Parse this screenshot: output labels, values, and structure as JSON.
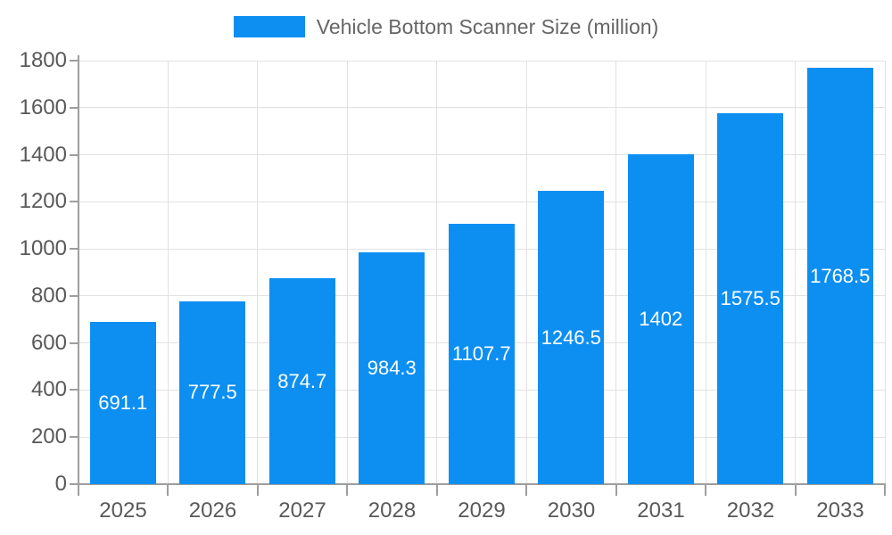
{
  "legend": {
    "label": "Vehicle Bottom Scanner Size (million)"
  },
  "chart_data": {
    "type": "bar",
    "title": "Vehicle Bottom Scanner Size (million)",
    "categories": [
      "2025",
      "2026",
      "2027",
      "2028",
      "2029",
      "2030",
      "2031",
      "2032",
      "2033"
    ],
    "values": [
      691.1,
      777.5,
      874.7,
      984.3,
      1107.7,
      1246.5,
      1402,
      1575.5,
      1768.5
    ],
    "value_labels": [
      "691.1",
      "777.5",
      "874.7",
      "984.3",
      "1107.7",
      "1246.5",
      "1402",
      "1575.5",
      "1768.5"
    ],
    "xlabel": "",
    "ylabel": "",
    "ylim": [
      0,
      1800
    ],
    "yticks": [
      0,
      200,
      400,
      600,
      800,
      1000,
      1200,
      1400,
      1600,
      1800
    ],
    "grid": true,
    "legend_position": "top",
    "bar_width_fraction": 0.735
  },
  "colors": {
    "bar": "#0d8ff2",
    "axis": "#9e9e9e",
    "grid": "#e2e2e2",
    "tick_label": "#595959",
    "legend_text": "#666666",
    "value_label": "#ffffff",
    "background": "#ffffff"
  }
}
